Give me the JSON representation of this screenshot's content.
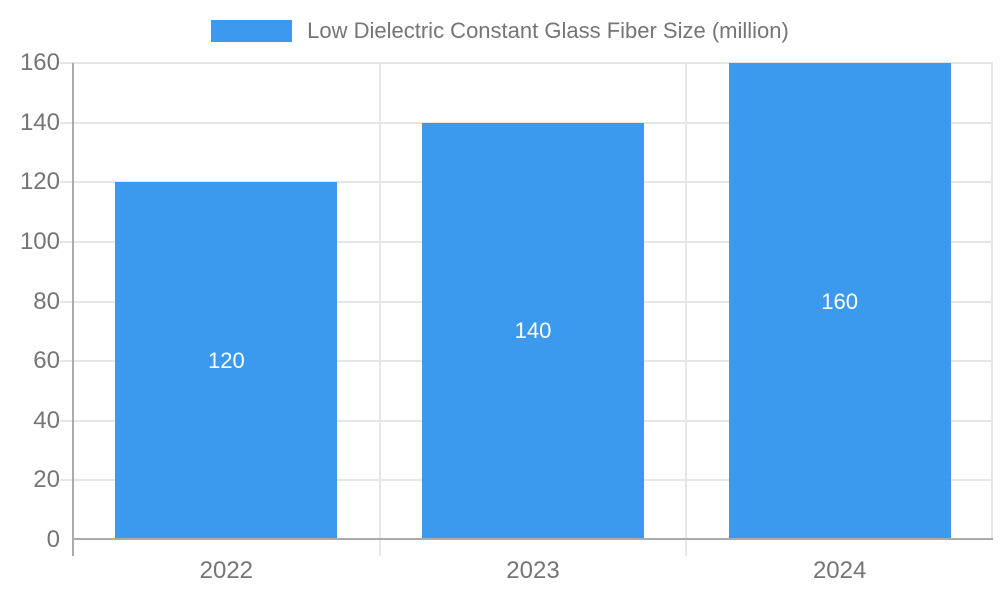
{
  "chart_data": {
    "type": "bar",
    "title": "Low Dielectric Constant Glass Fiber Size (million)",
    "categories": [
      "2022",
      "2023",
      "2024"
    ],
    "values": [
      120,
      140,
      160
    ],
    "series": [
      {
        "name": "Low Dielectric Constant Glass Fiber Size (million)",
        "values": [
          120,
          140,
          160
        ]
      }
    ],
    "bar_value_labels": [
      "120",
      "140",
      "160"
    ],
    "xlabel": "",
    "ylabel": "",
    "ylim": [
      0,
      160
    ],
    "ytick_step": 20,
    "yticks": [
      0,
      20,
      40,
      60,
      80,
      100,
      120,
      140,
      160
    ],
    "grid": true,
    "legend_position": "top",
    "colors": {
      "bar": "#3B99EE",
      "gridline": "#E6E6E6",
      "axis_line": "#ABABAB",
      "tick_text": "#757575",
      "legend_text": "#757575",
      "bar_label_text": "#FFFFFF",
      "background": "#FFFFFF"
    }
  }
}
